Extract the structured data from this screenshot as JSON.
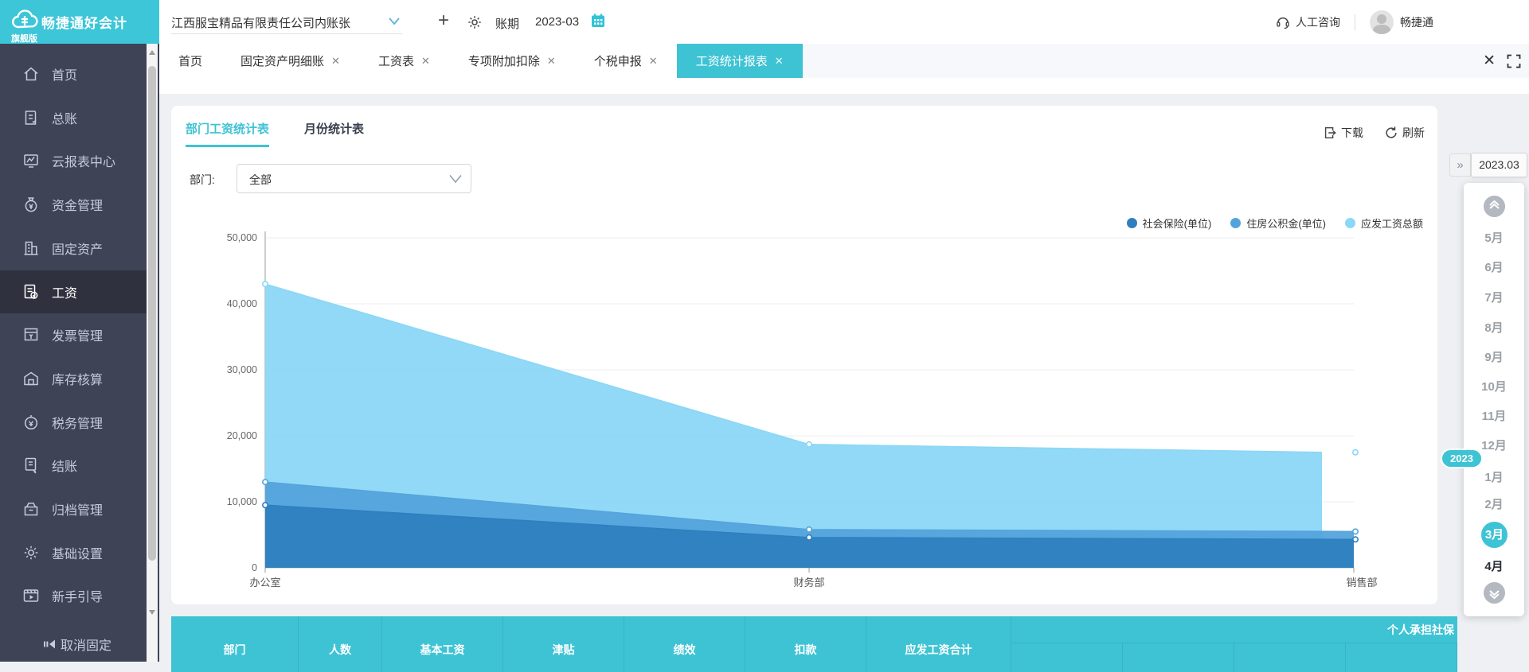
{
  "brand": {
    "name": "畅捷通好会计",
    "edition": "旗舰版"
  },
  "topbar": {
    "company": "江西服宝精品有限责任公司内账张",
    "period_label": "账期",
    "period_value": "2023-03",
    "help_label": "人工咨询",
    "username": "畅捷通"
  },
  "tabbar": {
    "tabs": [
      {
        "label": "首页",
        "closable": false,
        "active": false
      },
      {
        "label": "固定资产明细账",
        "closable": true,
        "active": false
      },
      {
        "label": "工资表",
        "closable": true,
        "active": false
      },
      {
        "label": "专项附加扣除",
        "closable": true,
        "active": false
      },
      {
        "label": "个税申报",
        "closable": true,
        "active": false
      },
      {
        "label": "工资统计报表",
        "closable": true,
        "active": true
      }
    ]
  },
  "sidebar": {
    "items": [
      {
        "icon": "home-icon",
        "label": "首页",
        "active": false
      },
      {
        "icon": "ledger-icon",
        "label": "总账",
        "active": false
      },
      {
        "icon": "cloud-report-icon",
        "label": "云报表中心",
        "active": false
      },
      {
        "icon": "funds-icon",
        "label": "资金管理",
        "active": false
      },
      {
        "icon": "fixed-assets-icon",
        "label": "固定资产",
        "active": false
      },
      {
        "icon": "salary-icon",
        "label": "工资",
        "active": true
      },
      {
        "icon": "invoice-icon",
        "label": "发票管理",
        "active": false
      },
      {
        "icon": "inventory-icon",
        "label": "库存核算",
        "active": false
      },
      {
        "icon": "tax-icon",
        "label": "税务管理",
        "active": false
      },
      {
        "icon": "closing-icon",
        "label": "结账",
        "active": false
      },
      {
        "icon": "archive-icon",
        "label": "归档管理",
        "active": false
      },
      {
        "icon": "settings-icon",
        "label": "基础设置",
        "active": false
      },
      {
        "icon": "guide-icon",
        "label": "新手引导",
        "active": false
      }
    ],
    "unpin_label": "取消固定"
  },
  "report": {
    "subtabs": [
      {
        "label": "部门工资统计表",
        "active": true
      },
      {
        "label": "月份统计表",
        "active": false
      }
    ],
    "download_label": "下载",
    "refresh_label": "刷新",
    "filter_label": "部门:",
    "filter_value": "全部"
  },
  "period_panel": {
    "current": "2023.03",
    "year_badge": "2023",
    "months": [
      {
        "label": "5月",
        "state": "muted"
      },
      {
        "label": "6月",
        "state": "muted"
      },
      {
        "label": "7月",
        "state": "muted"
      },
      {
        "label": "8月",
        "state": "muted"
      },
      {
        "label": "9月",
        "state": "muted"
      },
      {
        "label": "10月",
        "state": "muted"
      },
      {
        "label": "11月",
        "state": "muted"
      },
      {
        "label": "12月",
        "state": "muted"
      },
      {
        "label": "1月",
        "state": "muted"
      },
      {
        "label": "2月",
        "state": "muted"
      },
      {
        "label": "3月",
        "state": "active"
      },
      {
        "label": "4月",
        "state": "strong"
      }
    ]
  },
  "table": {
    "columns": [
      "部门",
      "人数",
      "基本工资",
      "津贴",
      "绩效",
      "扣款",
      "应发工资合计"
    ],
    "group_header": "个人承担社保",
    "group_subcolumns": 4
  },
  "chart_data": {
    "type": "area",
    "categories": [
      "办公室",
      "财务部",
      "销售部"
    ],
    "series": [
      {
        "name": "社会保险(单位)",
        "color": "#2e7fbf",
        "values": [
          9500,
          4600,
          4300
        ]
      },
      {
        "name": "住房公积金(单位)",
        "color": "#54a4dc",
        "values": [
          13000,
          5800,
          5500
        ]
      },
      {
        "name": "应发工资总额",
        "color": "#8bd7f6",
        "values": [
          43000,
          18700,
          17500
        ]
      }
    ],
    "ylim": [
      0,
      50000
    ],
    "ytick_step": 10000,
    "xlabel": "",
    "ylabel": "",
    "legend_position": "top-right",
    "grid": true
  }
}
